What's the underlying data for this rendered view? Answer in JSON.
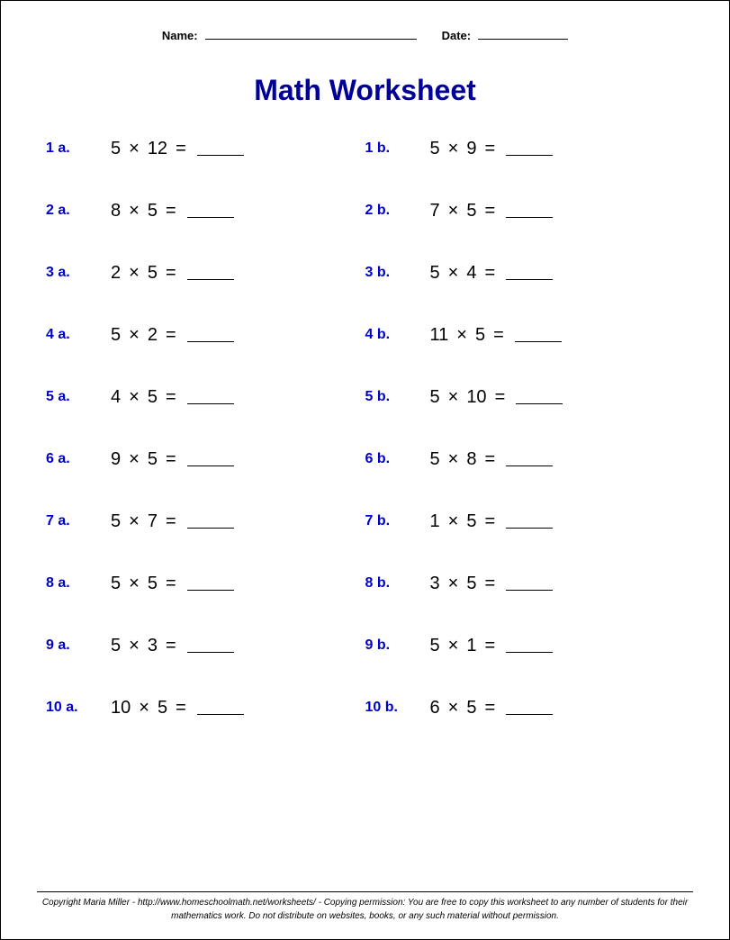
{
  "header": {
    "name_label": "Name:",
    "date_label": "Date:"
  },
  "title": "Math Worksheet",
  "styling": {
    "title_color": "#000099",
    "title_fontsize": 32,
    "number_color": "#0000cc",
    "number_fontsize": 16,
    "problem_fontsize": 20,
    "problem_color": "#000000",
    "background": "#ffffff",
    "border_color": "#000000",
    "footer_fontsize": 10
  },
  "operator": "×",
  "equals": "=",
  "problems": [
    {
      "num": "1 a.",
      "a": "5",
      "b": "12"
    },
    {
      "num": "1 b.",
      "a": "5",
      "b": "9"
    },
    {
      "num": "2 a.",
      "a": "8",
      "b": "5"
    },
    {
      "num": "2 b.",
      "a": "7",
      "b": "5"
    },
    {
      "num": "3 a.",
      "a": "2",
      "b": "5"
    },
    {
      "num": "3 b.",
      "a": "5",
      "b": "4"
    },
    {
      "num": "4 a.",
      "a": "5",
      "b": "2"
    },
    {
      "num": "4 b.",
      "a": "11",
      "b": "5"
    },
    {
      "num": "5 a.",
      "a": "4",
      "b": "5"
    },
    {
      "num": "5 b.",
      "a": "5",
      "b": "10"
    },
    {
      "num": "6 a.",
      "a": "9",
      "b": "5"
    },
    {
      "num": "6 b.",
      "a": "5",
      "b": "8"
    },
    {
      "num": "7 a.",
      "a": "5",
      "b": "7"
    },
    {
      "num": "7 b.",
      "a": "1",
      "b": "5"
    },
    {
      "num": "8 a.",
      "a": "5",
      "b": "5"
    },
    {
      "num": "8 b.",
      "a": "3",
      "b": "5"
    },
    {
      "num": "9 a.",
      "a": "5",
      "b": "3"
    },
    {
      "num": "9 b.",
      "a": "5",
      "b": "1"
    },
    {
      "num": "10 a.",
      "a": "10",
      "b": "5"
    },
    {
      "num": "10 b.",
      "a": "6",
      "b": "5"
    }
  ],
  "footer": "Copyright Maria Miller - http://www.homeschoolmath.net/worksheets/ - Copying permission: You are free to copy this worksheet to any number of students for their mathematics work. Do not distribute on websites, books, or any such material without permission."
}
